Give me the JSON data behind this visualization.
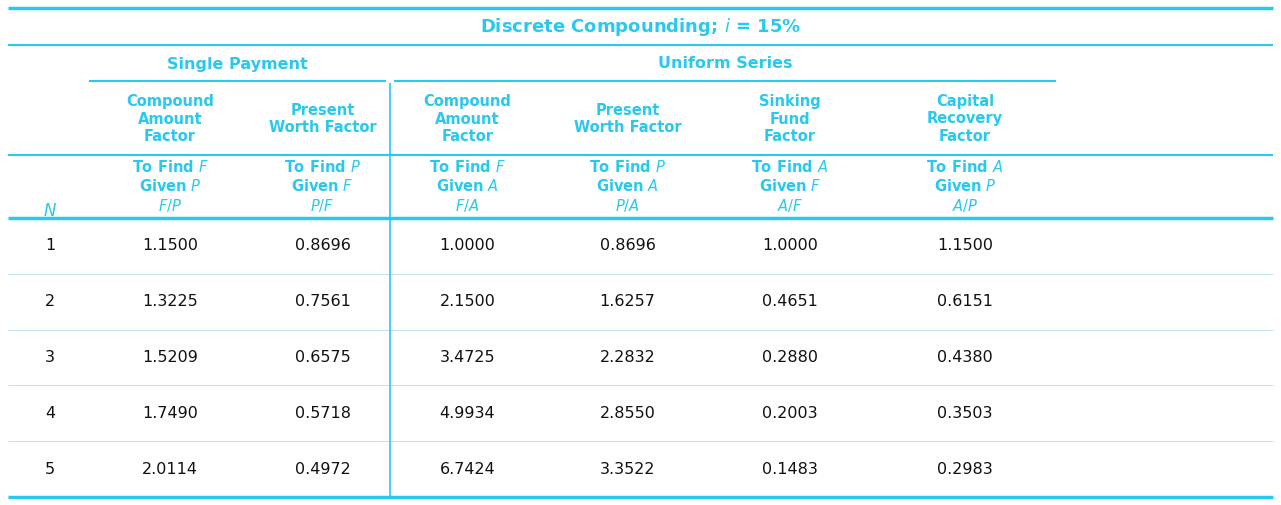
{
  "title": "Discrete Compounding; $i$ = 15%",
  "cyan": "#29C8EE",
  "bg": "#FFFFFF",
  "n_values": [
    "1",
    "2",
    "3",
    "4",
    "5"
  ],
  "col_FIP": [
    "1.1500",
    "1.3225",
    "1.5209",
    "1.7490",
    "2.0114"
  ],
  "col_PIF": [
    "0.8696",
    "0.7561",
    "0.6575",
    "0.5718",
    "0.4972"
  ],
  "col_FIA": [
    "1.0000",
    "2.1500",
    "3.4725",
    "4.9934",
    "6.7424"
  ],
  "col_PIA": [
    "0.8696",
    "1.6257",
    "2.2832",
    "2.8550",
    "3.3522"
  ],
  "col_AIF": [
    "1.0000",
    "0.4651",
    "0.2880",
    "0.2003",
    "0.1483"
  ],
  "col_AIP": [
    "1.1500",
    "0.6151",
    "0.4380",
    "0.3503",
    "0.2983"
  ],
  "group1": "Single Payment",
  "group2": "Uniform Series",
  "title_fs": 13,
  "group_fs": 11.5,
  "colhdr_fs": 10.5,
  "subhdr_fs": 10.5,
  "data_fs": 11.5,
  "n_fs": 12,
  "line_lw_thin": 1.5,
  "line_lw_thick": 2.5
}
